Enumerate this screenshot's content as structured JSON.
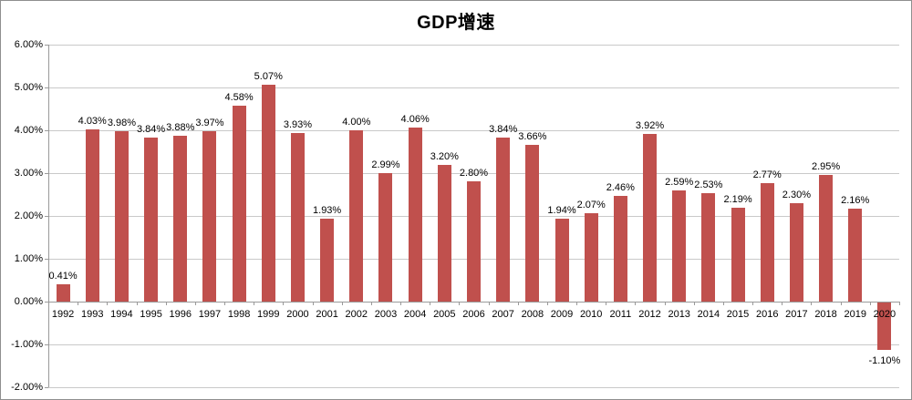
{
  "chart_data": {
    "type": "bar",
    "title": "GDP增速",
    "categories": [
      "1992",
      "1993",
      "1994",
      "1995",
      "1996",
      "1997",
      "1998",
      "1999",
      "2000",
      "2001",
      "2002",
      "2003",
      "2004",
      "2005",
      "2006",
      "2007",
      "2008",
      "2009",
      "2010",
      "2011",
      "2012",
      "2013",
      "2014",
      "2015",
      "2016",
      "2017",
      "2018",
      "2019",
      "2020"
    ],
    "values": [
      0.41,
      4.03,
      3.98,
      3.84,
      3.88,
      3.97,
      4.58,
      5.07,
      3.93,
      1.93,
      4.0,
      2.99,
      4.06,
      3.2,
      2.8,
      3.84,
      3.66,
      1.94,
      2.07,
      2.46,
      3.92,
      2.59,
      2.53,
      2.19,
      2.77,
      2.3,
      2.95,
      2.16,
      -1.1
    ],
    "value_labels": [
      "0.41%",
      "4.03%",
      "3.98%",
      "3.84%",
      "3.88%",
      "3.97%",
      "4.58%",
      "5.07%",
      "3.93%",
      "1.93%",
      "4.00%",
      "2.99%",
      "4.06%",
      "3.20%",
      "2.80%",
      "3.84%",
      "3.66%",
      "1.94%",
      "2.07%",
      "2.46%",
      "3.92%",
      "2.59%",
      "2.53%",
      "2.19%",
      "2.77%",
      "2.30%",
      "2.95%",
      "2.16%",
      "-1.10%"
    ],
    "xlabel": "",
    "ylabel": "",
    "ylim": [
      -2,
      6
    ],
    "ytick_values": [
      6,
      5,
      4,
      3,
      2,
      1,
      0,
      -1,
      -2
    ],
    "ytick_labels": [
      "6.00%",
      "5.00%",
      "4.00%",
      "3.00%",
      "2.00%",
      "1.00%",
      "0.00%",
      "-1.00%",
      "-2.00%"
    ],
    "grid": true,
    "legend": false,
    "bar_color": "#C0504D",
    "gridline_color": "#C9C9C9",
    "axis_color": "#9A9A9A",
    "text_color": "#000000",
    "border_color": "#8F8F8F"
  }
}
